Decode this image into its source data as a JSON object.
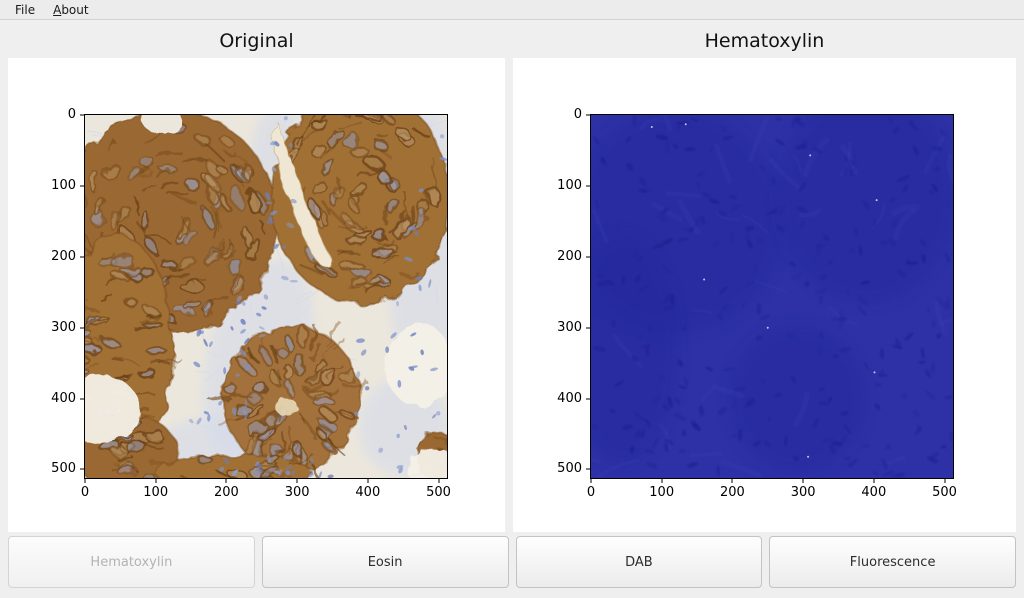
{
  "menu": {
    "items": [
      {
        "label": "File",
        "underline_index": null
      },
      {
        "label": "About",
        "underline_index": 0
      }
    ]
  },
  "panels": [
    {
      "title": "Original"
    },
    {
      "title": "Hematoxylin"
    }
  ],
  "plots": [
    {
      "xticks": [
        "0",
        "100",
        "200",
        "300",
        "400",
        "500"
      ],
      "yticks": [
        "0",
        "100",
        "200",
        "300",
        "400",
        "500"
      ],
      "extent": 512
    },
    {
      "xticks": [
        "0",
        "100",
        "200",
        "300",
        "400",
        "500"
      ],
      "yticks": [
        "0",
        "100",
        "200",
        "300",
        "400",
        "500"
      ],
      "extent": 512
    }
  ],
  "buttons": [
    {
      "label": "Hematoxylin",
      "enabled": false
    },
    {
      "label": "Eosin",
      "enabled": true
    },
    {
      "label": "DAB",
      "enabled": true
    },
    {
      "label": "Fluorescence",
      "enabled": true
    }
  ],
  "colors": {
    "window_background": "#efefef",
    "canvas": "#ffffff",
    "hematoxylin_base": "#2d31a5",
    "hematoxylin_nuclei": "#1b1e8f",
    "ihc_brown": "#9a6830",
    "ihc_brown_dark": "#6f4419",
    "stroma_nuclei_blue": "#7d90c8",
    "stroma_cream": "#ece7dc"
  }
}
